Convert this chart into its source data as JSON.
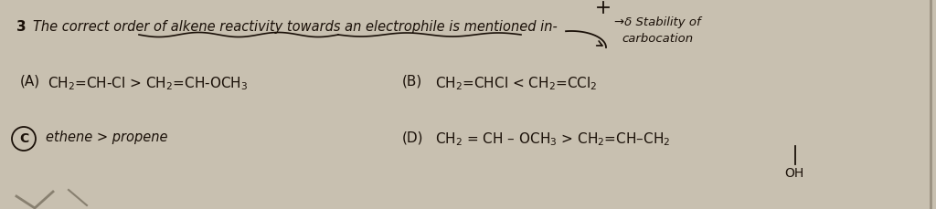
{
  "background_color": "#c8c0b0",
  "text_color": "#1a1008",
  "gray_color": "#888070",
  "fig_width": 10.24,
  "fig_height": 2.29,
  "dpi": 100,
  "q_num": "3",
  "q_text": "The correct order of alkene reactivity towards an electrophile is mentioned in-",
  "annotation_line1": "→δ Stability of",
  "annotation_line2": "   carbocation",
  "opt_A_label": "(A)",
  "opt_A": "CH$_2$=CH-Cl > CH$_2$=CH-OCH$_3$",
  "opt_B_label": "(B)",
  "opt_B": "CH$_2$=CHCl < CH$_2$=CCl$_2$",
  "opt_C_label": "C",
  "opt_C": "ethene > propene",
  "opt_D_label": "(D)",
  "opt_D": "CH$_2$ = CH – OCH$_3$ > CH$_2$=CH–CH$_2$",
  "opt_D_oh": "OH"
}
